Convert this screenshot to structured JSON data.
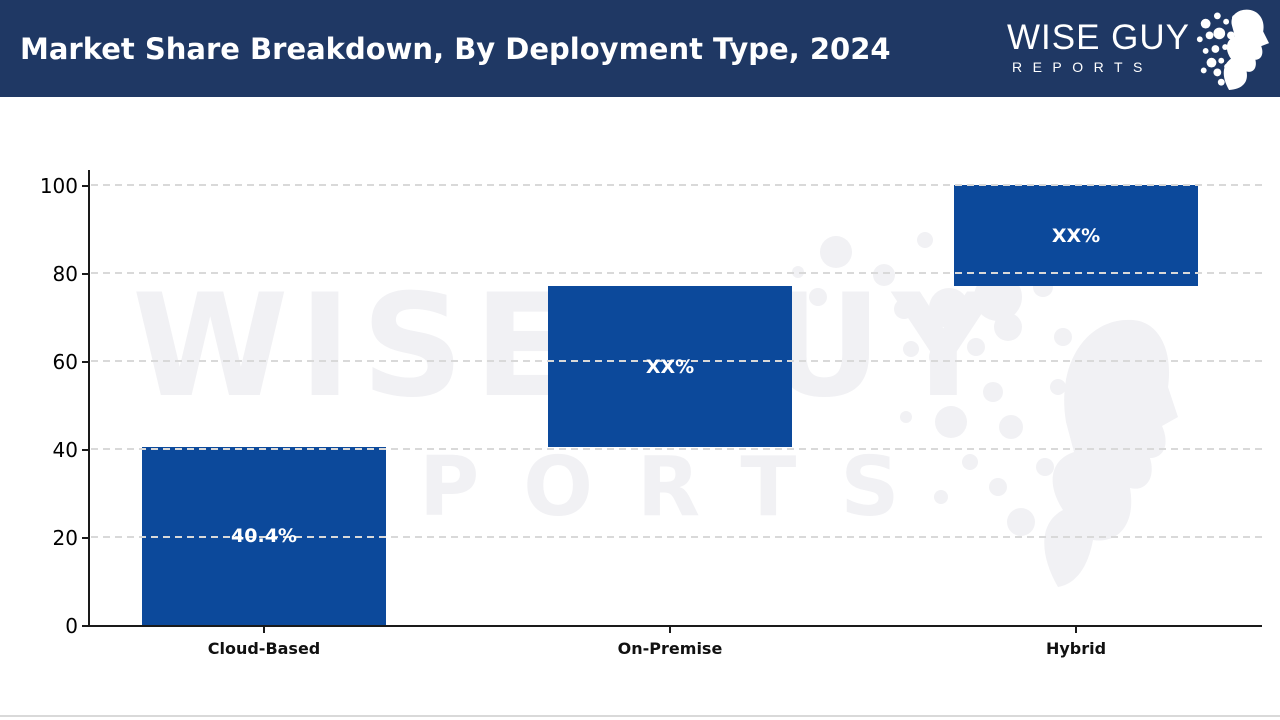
{
  "header": {
    "title": "Market Share Breakdown, By Deployment Type, 2024",
    "logo": {
      "brand_top": "WISE GUY",
      "brand_bottom": "REPORTS",
      "head_icon": "dotted-head-profile"
    }
  },
  "watermark": {
    "brand_top": "WISE GUY",
    "brand_bottom": "REPORTS",
    "head_icon": "dotted-head-profile"
  },
  "chart_data": {
    "type": "bar",
    "subtype": "floating-segment-waterfall",
    "title": "Market Share Breakdown, By Deployment Type, 2024",
    "categories": [
      "Cloud-Based",
      "On-Premise",
      "Hybrid"
    ],
    "bars": [
      {
        "category": "Cloud-Based",
        "start": 0,
        "end": 40.4,
        "label": "40.4%"
      },
      {
        "category": "On-Premise",
        "start": 40.4,
        "end": 77,
        "label": "XX%"
      },
      {
        "category": "Hybrid",
        "start": 77,
        "end": 100,
        "label": "XX%"
      }
    ],
    "xlabel": "",
    "ylabel": "",
    "ylim": [
      0,
      103
    ],
    "yticks": [
      0,
      20,
      40,
      60,
      80,
      100
    ],
    "grid": {
      "horizontal": true,
      "style": "dashed",
      "drawn_over_bars": true
    },
    "legend": null,
    "colors": {
      "bar": "#0c499b",
      "bar_label": "#ffffff",
      "axis": "#1a1a1a",
      "tick_label": "#000000",
      "gridline": "#d9d9d9",
      "header_bg": "#1f3864",
      "watermark": "#f1f1f4"
    }
  }
}
